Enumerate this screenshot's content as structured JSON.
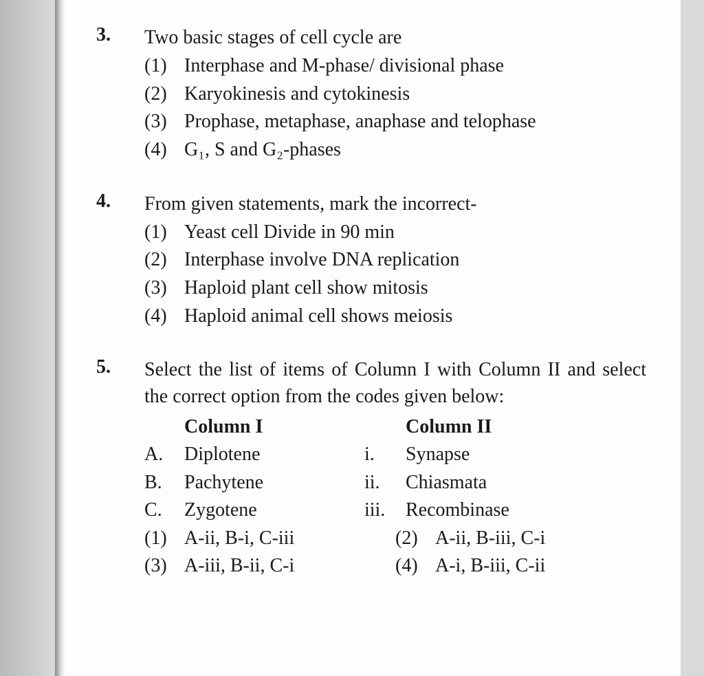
{
  "colors": {
    "background": "#d8d9db",
    "page": "#fdfdfd",
    "text": "#1a1a1a"
  },
  "typography": {
    "font_family": "Times New Roman",
    "base_fontsize": 28,
    "line_height": 1.45
  },
  "questions": [
    {
      "number": "3.",
      "text": "Two basic stages of cell cycle are",
      "options": [
        {
          "num": "(1)",
          "text": "Interphase and M-phase/ divisional phase"
        },
        {
          "num": "(2)",
          "text": "Karyokinesis and cytokinesis"
        },
        {
          "num": "(3)",
          "text": "Prophase, metaphase, anaphase and telophase"
        },
        {
          "num": "(4)",
          "text": "G₁, S and G₂-phases"
        }
      ]
    },
    {
      "number": "4.",
      "text": "From given statements, mark the incorrect-",
      "options": [
        {
          "num": "(1)",
          "text": "Yeast cell Divide in 90 min"
        },
        {
          "num": "(2)",
          "text": "Interphase involve DNA replication"
        },
        {
          "num": "(3)",
          "text": "Haploid plant cell show mitosis"
        },
        {
          "num": "(4)",
          "text": "Haploid animal cell shows meiosis"
        }
      ]
    },
    {
      "number": "5.",
      "text": "Select the list of items of Column I with Column II and select the correct option from the codes given below:",
      "columns": {
        "header_left": "Column I",
        "header_right": "Column II",
        "rows_left": [
          {
            "label": "A.",
            "text": "Diplotene"
          },
          {
            "label": "B.",
            "text": "Pachytene"
          },
          {
            "label": "C.",
            "text": "Zygotene"
          }
        ],
        "rows_right": [
          {
            "label": "i.",
            "text": "Synapse"
          },
          {
            "label": "ii.",
            "text": "Chiasmata"
          },
          {
            "label": "iii.",
            "text": "Recombinase"
          }
        ]
      },
      "answers": [
        {
          "num": "(1)",
          "text": "A-ii, B-i, C-iii"
        },
        {
          "num": "(2)",
          "text": "A-ii, B-iii, C-i"
        },
        {
          "num": "(3)",
          "text": "A-iii, B-ii, C-i"
        },
        {
          "num": "(4)",
          "text": "A-i, B-iii, C-ii"
        }
      ]
    }
  ]
}
